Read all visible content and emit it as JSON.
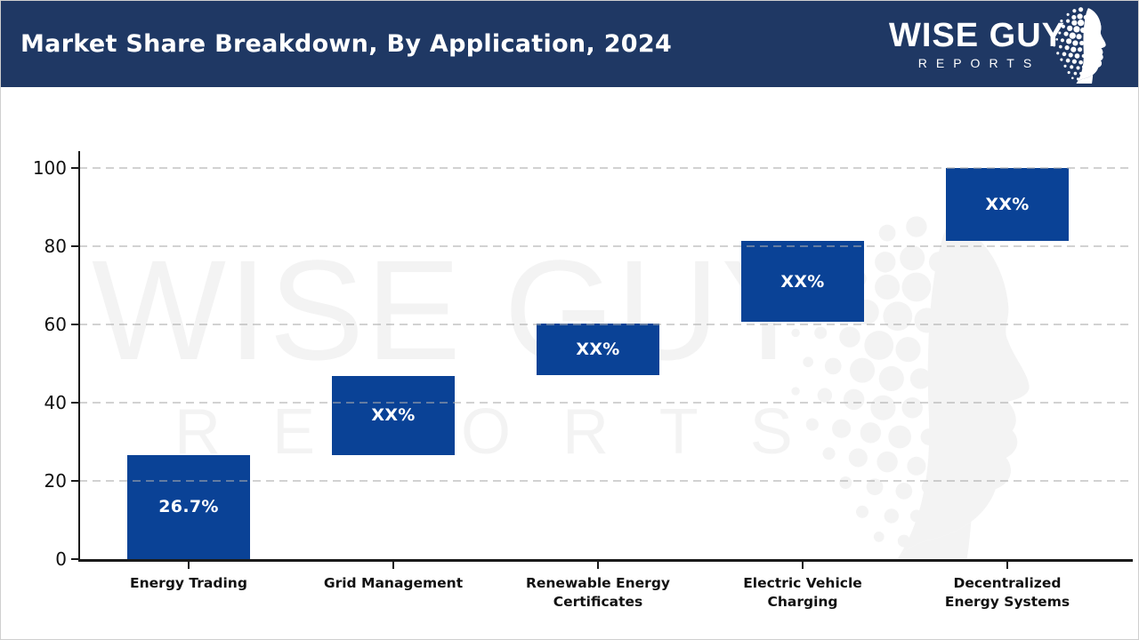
{
  "header": {
    "title": "Market Share Breakdown, By Application, 2024",
    "logo": {
      "line1": "WISE GUY",
      "line2": "REPORTS"
    }
  },
  "watermark": {
    "line1": "WISE GUY",
    "line2": "REPORTS"
  },
  "colors": {
    "header_bg": "#1f3864",
    "bar": "#0a4296",
    "axis": "#1a1a1a",
    "gridline": "#acacac",
    "watermark": "#f3f3f3",
    "value_label": "#ffffff"
  },
  "chart_data": {
    "type": "bar",
    "subtype": "waterfall",
    "title": "Market Share Breakdown, By Application, 2024",
    "unit": "%",
    "ylim": [
      0,
      100
    ],
    "yticks": [
      0,
      20,
      40,
      60,
      80,
      100
    ],
    "grid": "horizontal-dashed-over-bars",
    "legend": "none",
    "xlabel": "",
    "ylabel": "",
    "categories": [
      "Energy Trading",
      "Grid Management",
      "Renewable Energy Certificates",
      "Electric Vehicle Charging",
      "Decentralized Energy Systems"
    ],
    "bars": [
      {
        "category": "Energy Trading",
        "label_lines": [
          "Energy Trading"
        ],
        "start": 0,
        "end": 26.7,
        "value_label": "26.7%"
      },
      {
        "category": "Grid Management",
        "label_lines": [
          "Grid Management"
        ],
        "start": 26.7,
        "end": 46.9,
        "value_label": "XX%"
      },
      {
        "category": "Renewable Energy Certificates",
        "label_lines": [
          "Renewable Energy",
          "Certificates"
        ],
        "start": 47.0,
        "end": 60.2,
        "value_label": "XX%"
      },
      {
        "category": "Electric Vehicle Charging",
        "label_lines": [
          "Electric Vehicle",
          "Charging"
        ],
        "start": 60.6,
        "end": 81.4,
        "value_label": "XX%"
      },
      {
        "category": "Decentralized Energy Systems",
        "label_lines": [
          "Decentralized",
          "Energy Systems"
        ],
        "start": 81.4,
        "end": 100,
        "value_label": "XX%"
      }
    ]
  }
}
